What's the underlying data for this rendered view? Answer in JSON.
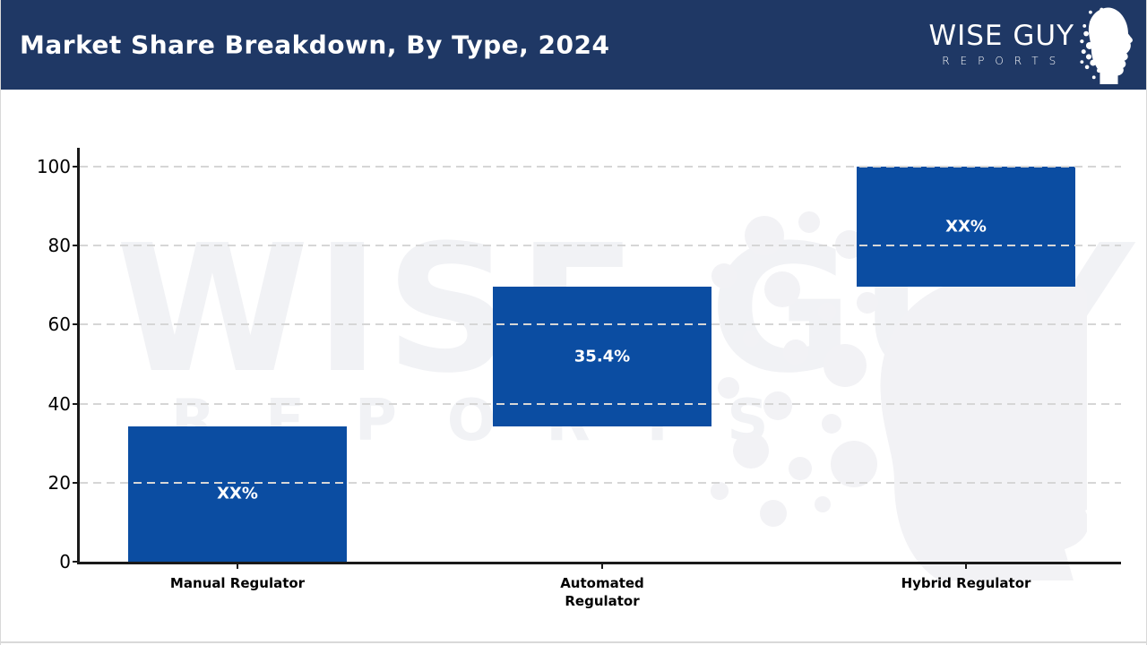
{
  "header": {
    "title": "Market Share Breakdown, By Type, 2024",
    "logo": {
      "line1": "WISE GUY",
      "line2": "REPORTS"
    }
  },
  "watermark": {
    "line1": "WISE GUY",
    "line2": "REPORTS"
  },
  "chart_data": {
    "type": "bar",
    "subtype": "floating-segment-breakdown",
    "title": "Market Share Breakdown, By Type, 2024",
    "categories": [
      "Manual Regulator",
      "Automated\nRegulator",
      "Hybrid Regulator"
    ],
    "bars": [
      {
        "category": "Manual Regulator",
        "from": 0,
        "to": 34.3,
        "label": "XX%"
      },
      {
        "category": "Automated Regulator",
        "from": 34.3,
        "to": 69.7,
        "label": "35.4%"
      },
      {
        "category": "Hybrid Regulator",
        "from": 69.7,
        "to": 100,
        "label": "XX%"
      }
    ],
    "ylim": [
      0,
      100
    ],
    "yticks": [
      0,
      20,
      40,
      60,
      80,
      100
    ],
    "xlabel": "",
    "ylabel": "",
    "grid": "horizontal-dashed",
    "legend": "none",
    "bar_color": "#0b4da2",
    "value_label_color": "#ffffff"
  },
  "colors": {
    "header_bg": "#1f3865",
    "bar": "#0b4da2",
    "grid": "#d6d6d6",
    "axis": "#1a1a1a",
    "watermark": "#f1f2f5"
  }
}
